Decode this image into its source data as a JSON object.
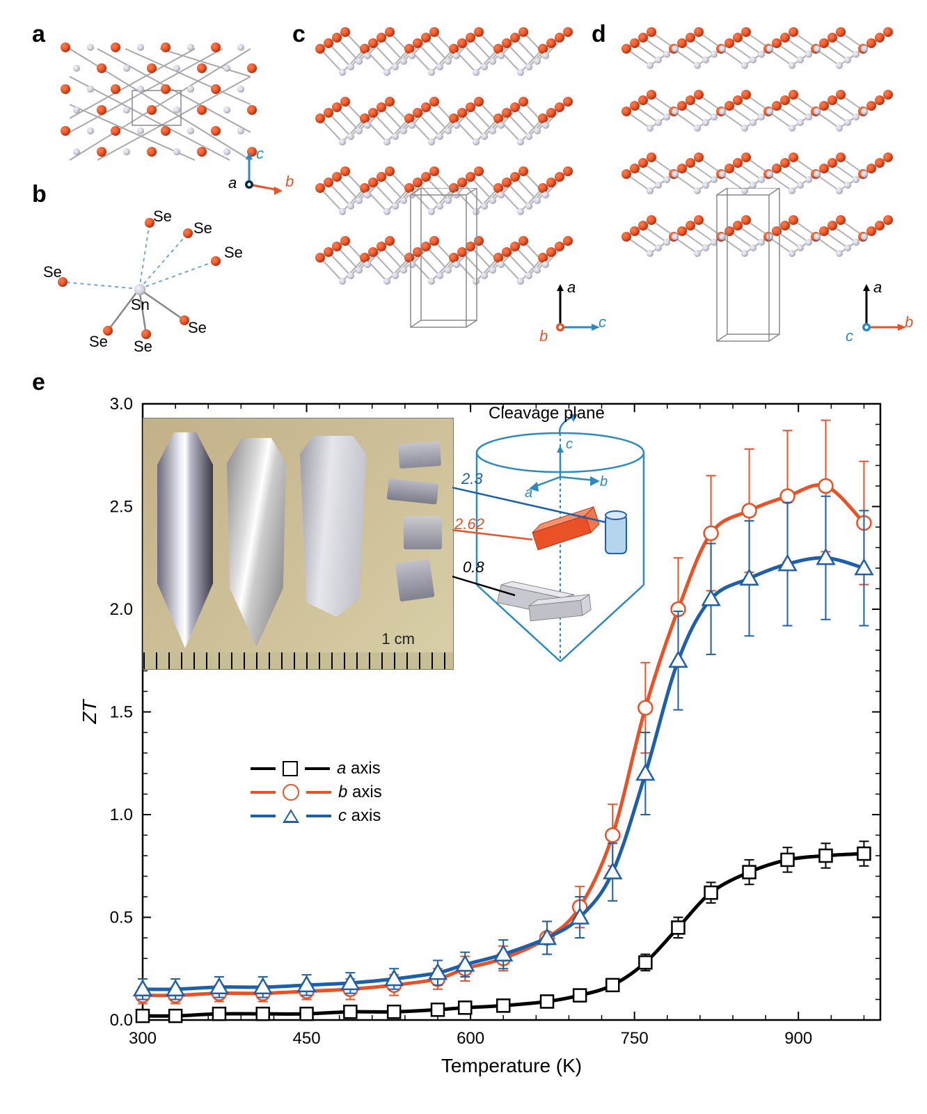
{
  "panels": {
    "a": "a",
    "b": "b",
    "c": "c",
    "d": "d",
    "e": "e"
  },
  "atoms": {
    "se_label": "Se",
    "sn_label": "Sn",
    "se_color": "#e84b1f",
    "sn_color": "#c8c8dc"
  },
  "axes": {
    "a_label": "a",
    "b_label": "b",
    "c_label": "c",
    "a_color": "#000000",
    "b_color": "#e85226",
    "c_color": "#2a8ac4"
  },
  "chart": {
    "type": "scatter-line",
    "title": "",
    "xlabel": "Temperature (K)",
    "ylabel": "ZT",
    "xlim": [
      300,
      975
    ],
    "ylim": [
      0.0,
      3.0
    ],
    "xticks": [
      300,
      450,
      600,
      750,
      900
    ],
    "yticks": [
      0.0,
      0.5,
      1.0,
      1.5,
      2.0,
      2.5,
      3.0
    ],
    "axis_fontsize": 28,
    "tick_fontsize": 24,
    "background_color": "#ffffff",
    "axis_color": "#000000",
    "line_width": 5,
    "marker_size": 20,
    "series": [
      {
        "name": "a axis",
        "legend_label": "a axis",
        "color": "#000000",
        "marker": "square",
        "x": [
          300,
          330,
          370,
          410,
          450,
          490,
          530,
          570,
          595,
          630,
          670,
          700,
          730,
          760,
          790,
          820,
          855,
          890,
          925,
          960
        ],
        "y": [
          0.02,
          0.02,
          0.03,
          0.03,
          0.03,
          0.04,
          0.04,
          0.05,
          0.06,
          0.07,
          0.09,
          0.12,
          0.17,
          0.28,
          0.45,
          0.62,
          0.72,
          0.78,
          0.8,
          0.81
        ],
        "err": [
          0.02,
          0.02,
          0.02,
          0.02,
          0.02,
          0.02,
          0.02,
          0.02,
          0.02,
          0.02,
          0.03,
          0.03,
          0.03,
          0.04,
          0.05,
          0.05,
          0.06,
          0.06,
          0.06,
          0.06
        ]
      },
      {
        "name": "b axis",
        "legend_label": "b axis",
        "color": "#e85226",
        "marker": "circle",
        "x": [
          300,
          330,
          370,
          410,
          450,
          490,
          530,
          570,
          595,
          630,
          670,
          700,
          730,
          760,
          790,
          820,
          855,
          890,
          925,
          960
        ],
        "y": [
          0.12,
          0.12,
          0.13,
          0.13,
          0.14,
          0.15,
          0.17,
          0.2,
          0.25,
          0.3,
          0.4,
          0.55,
          0.9,
          1.52,
          2.0,
          2.37,
          2.48,
          2.55,
          2.6,
          2.42
        ],
        "err": [
          0.04,
          0.04,
          0.04,
          0.04,
          0.04,
          0.05,
          0.05,
          0.05,
          0.06,
          0.06,
          0.08,
          0.1,
          0.15,
          0.22,
          0.25,
          0.28,
          0.3,
          0.32,
          0.32,
          0.3
        ]
      },
      {
        "name": "c axis",
        "legend_label": "c axis",
        "color": "#1d5fa8",
        "marker": "triangle",
        "x": [
          300,
          330,
          370,
          410,
          450,
          490,
          530,
          570,
          595,
          630,
          670,
          700,
          730,
          760,
          790,
          820,
          855,
          890,
          925,
          960
        ],
        "y": [
          0.15,
          0.15,
          0.16,
          0.16,
          0.17,
          0.18,
          0.2,
          0.23,
          0.27,
          0.32,
          0.4,
          0.5,
          0.72,
          1.2,
          1.75,
          2.05,
          2.15,
          2.22,
          2.25,
          2.2
        ],
        "err": [
          0.05,
          0.05,
          0.05,
          0.05,
          0.05,
          0.05,
          0.05,
          0.06,
          0.06,
          0.07,
          0.08,
          0.1,
          0.14,
          0.2,
          0.24,
          0.27,
          0.28,
          0.3,
          0.3,
          0.28
        ]
      }
    ],
    "inset": {
      "cleavage_label": "Cleavage plane",
      "scale_label": "1 cm",
      "values": {
        "a": "0.8",
        "b": "2.62",
        "c": "2.3"
      }
    }
  }
}
